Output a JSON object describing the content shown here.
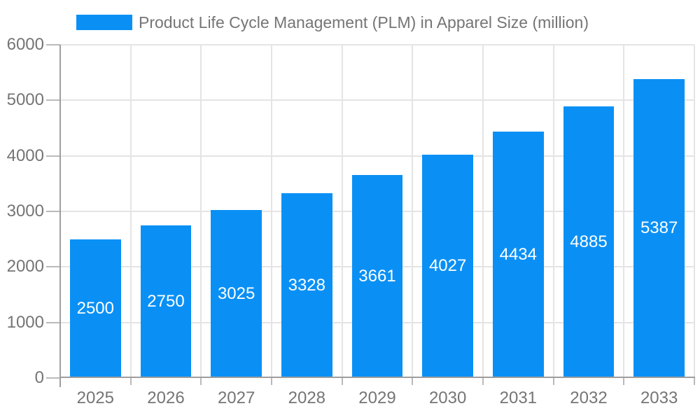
{
  "page": {
    "background": "#ffffff"
  },
  "colors": {
    "bar": "#0A90F5",
    "bar_label": "#ffffff",
    "axis_text": "#757575",
    "grid_line": "#e4e4e4",
    "axis_line": "#9e9e9e",
    "tick_mark": "#bababa"
  },
  "legend": {
    "label": "Product Life Cycle Management (PLM) in Apparel Size (million)"
  },
  "chart_data": {
    "type": "bar",
    "title": "Product Life Cycle Management (PLM) in Apparel Size (million)",
    "series_name": "Product Life Cycle Management (PLM) in Apparel Size (million)",
    "categories": [
      "2025",
      "2026",
      "2027",
      "2028",
      "2029",
      "2030",
      "2031",
      "2032",
      "2033"
    ],
    "values": [
      2500,
      2750,
      3025,
      3328,
      3661,
      4027,
      4434,
      4885,
      5387
    ],
    "bar_value_labels": [
      "2500",
      "2750",
      "3025",
      "3328",
      "3661",
      "4027",
      "4434",
      "4885",
      "5387"
    ],
    "xlabel": "",
    "ylabel": "",
    "ylim": [
      0,
      6000
    ],
    "ytick_interval": 1000,
    "ytick_labels": [
      "0",
      "1000",
      "2000",
      "3000",
      "4000",
      "5000",
      "6000"
    ],
    "grid": true,
    "legend_position": "top-left",
    "value_label_position": "inside-center"
  }
}
